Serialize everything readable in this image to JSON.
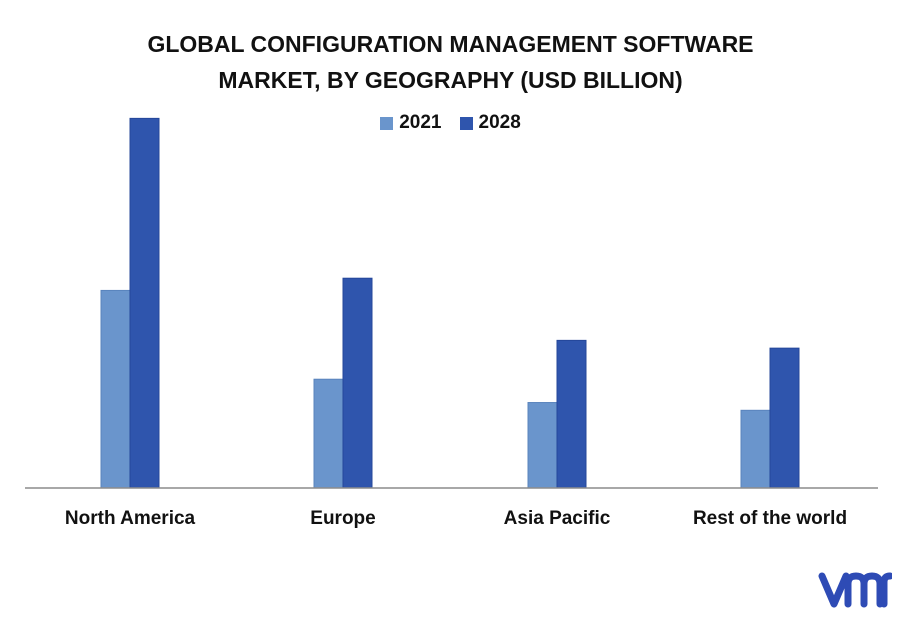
{
  "chart_data": {
    "type": "bar",
    "title_line1": "GLOBAL CONFIGURATION MANAGEMENT SOFTWARE",
    "title_line2": "MARKET, BY GEOGRAPHY (USD BILLION)",
    "categories": [
      "North America",
      "Europe",
      "Asia Pacific",
      "Rest of the world"
    ],
    "series": [
      {
        "name": "2021",
        "values": [
          1.78,
          0.98,
          0.77,
          0.7
        ]
      },
      {
        "name": "2028",
        "values": [
          3.33,
          1.89,
          1.33,
          1.26
        ]
      }
    ],
    "ylim": [
      0,
      3.5
    ],
    "grid": false,
    "legend_position": "top-center"
  },
  "colors": {
    "series_2021": "#6a95cc",
    "series_2028": "#2f55ad",
    "bar_outline_2021": "#5a84bd",
    "bar_outline_2028": "#24479a",
    "axis": "#8c8c8c",
    "logo": "#2e4bb5"
  },
  "logo": {
    "icon": "vmr-logo-icon"
  }
}
